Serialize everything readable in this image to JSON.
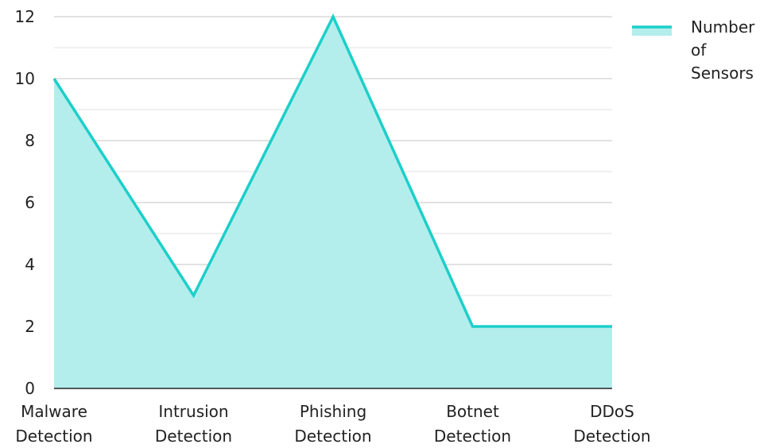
{
  "chart_data": {
    "type": "area",
    "categories": [
      [
        "Malware",
        "Detection"
      ],
      [
        "Intrusion",
        "Detection"
      ],
      [
        "Phishing",
        "Detection"
      ],
      [
        "Botnet",
        "Detection"
      ],
      [
        "DDoS",
        "Detection"
      ]
    ],
    "series": [
      {
        "name": "Number of Sensors",
        "values": [
          10,
          3,
          12,
          2,
          2
        ],
        "line_color": "#1ccfc9",
        "fill_color": "#b3eeec"
      }
    ],
    "ylim": [
      0,
      12
    ],
    "yticks": [
      "0",
      "2",
      "4",
      "6",
      "8",
      "10",
      "12"
    ],
    "grid": true,
    "legend_position": "top-right",
    "legend_lines": [
      "Number",
      "of",
      "Sensors"
    ]
  }
}
